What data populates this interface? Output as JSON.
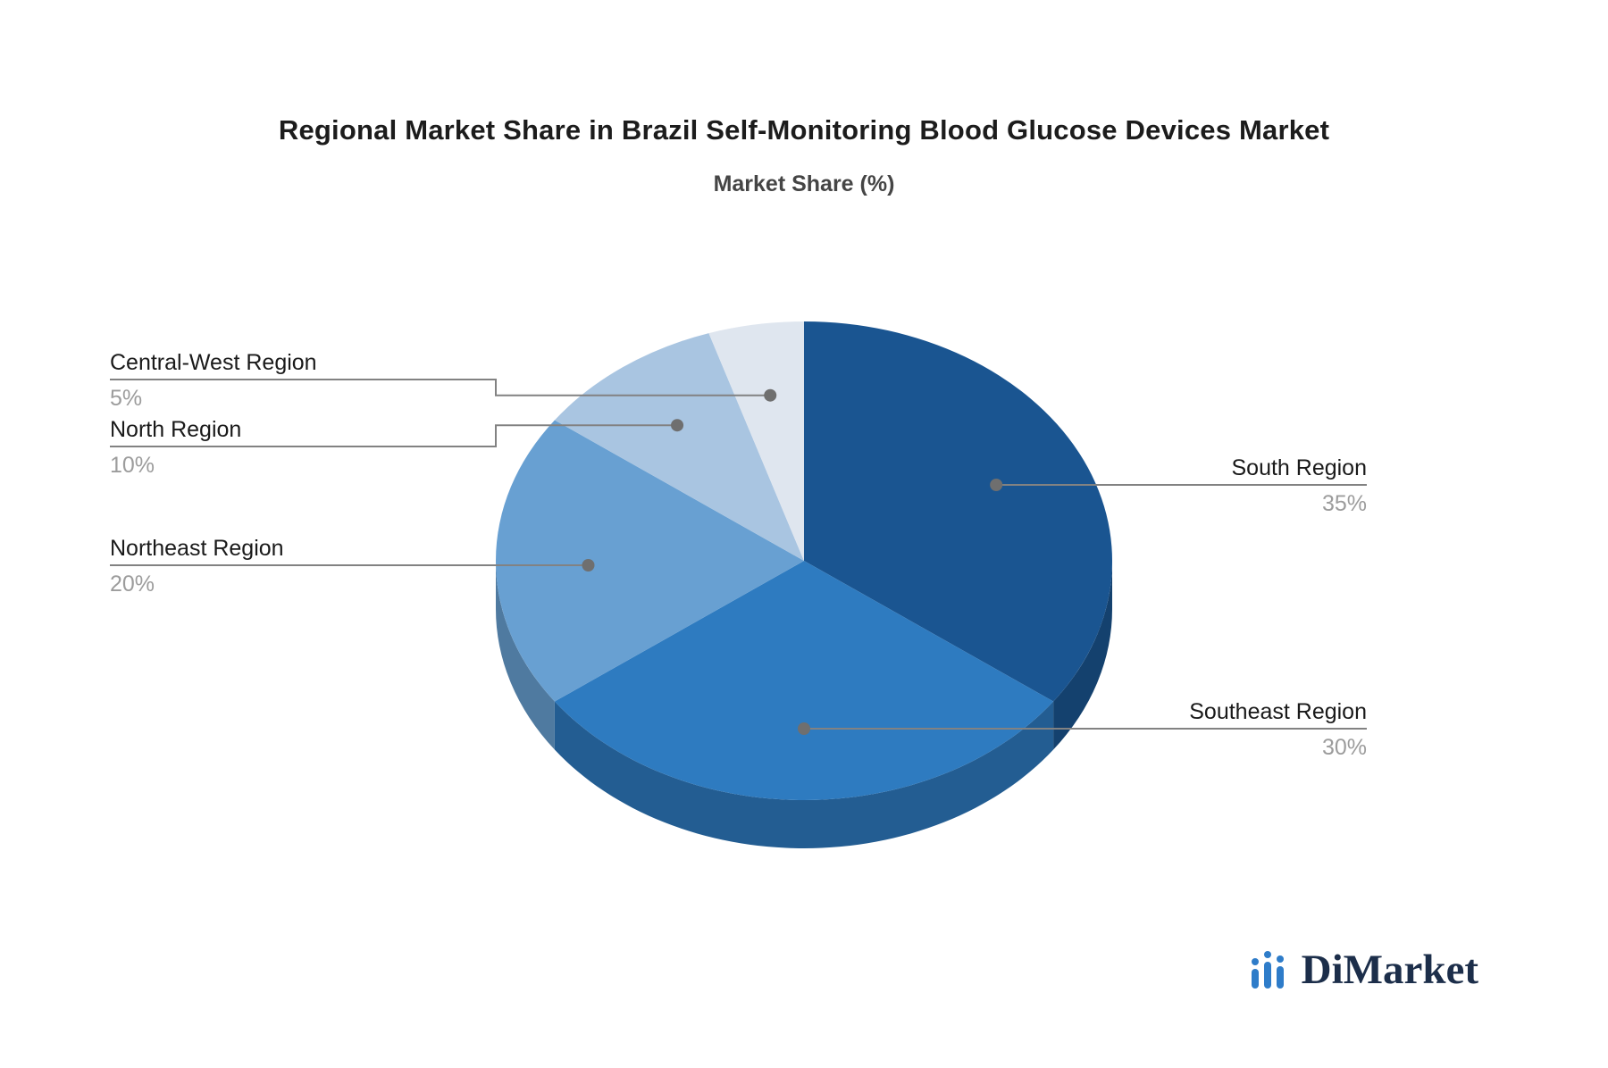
{
  "title": "Regional Market Share in Brazil Self-Monitoring Blood Glucose Devices Market",
  "subtitle": "Market Share (%)",
  "brand": {
    "name": "DiMarket",
    "text_color": "#1c2e4a",
    "icon": "bar-chart-logo-icon",
    "icon_color": "#2e7cc9"
  },
  "callout_style": {
    "line_color": "#828282",
    "dot_color": "#6f6f6f",
    "label_color": "#1a1a1a",
    "percent_color": "#9c9c9c"
  },
  "chart_data": {
    "type": "pie",
    "three_d": true,
    "title": "Regional Market Share in Brazil Self-Monitoring Blood Glucose Devices Market",
    "subtitle": "Market Share (%)",
    "unit": "%",
    "start_angle_deg": 0,
    "direction": "clockwise",
    "legend_position": "callout-labels",
    "categories": [
      "South Region",
      "Southeast Region",
      "Northeast Region",
      "North Region",
      "Central-West Region"
    ],
    "values": [
      35,
      30,
      20,
      10,
      5
    ],
    "slices": [
      {
        "label": "South Region",
        "value": 35,
        "pct_label": "35%",
        "color": "#1a5591",
        "label_side": "right"
      },
      {
        "label": "Southeast Region",
        "value": 30,
        "pct_label": "30%",
        "color": "#2e7bc0",
        "label_side": "right"
      },
      {
        "label": "Northeast Region",
        "value": 20,
        "pct_label": "20%",
        "color": "#68a0d2",
        "label_side": "left"
      },
      {
        "label": "North Region",
        "value": 10,
        "pct_label": "10%",
        "color": "#a9c5e1",
        "label_side": "left"
      },
      {
        "label": "Central-West Region",
        "value": 5,
        "pct_label": "5%",
        "color": "#dfe6ef",
        "label_side": "left"
      }
    ]
  }
}
